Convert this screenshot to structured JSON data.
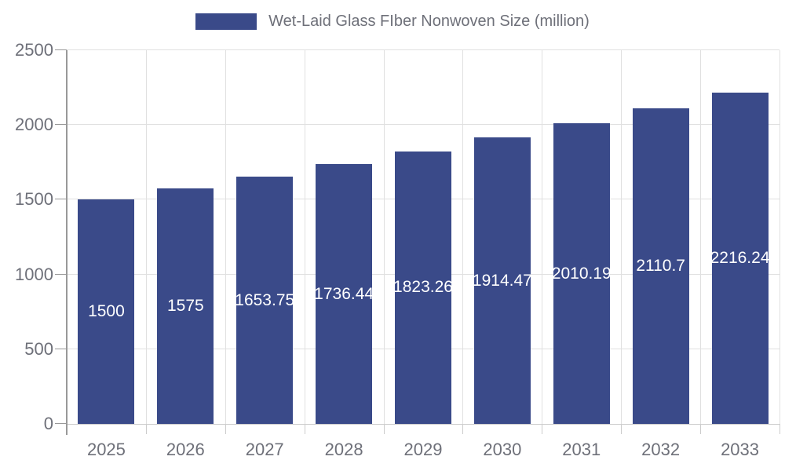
{
  "legend": {
    "label": "Wet-Laid Glass FIber Nonwoven Size (million)"
  },
  "chart_data": {
    "type": "bar",
    "title": "Wet-Laid Glass FIber Nonwoven Size (million)",
    "categories": [
      "2025",
      "2026",
      "2027",
      "2028",
      "2029",
      "2030",
      "2031",
      "2032",
      "2033"
    ],
    "values": [
      1500,
      1575,
      1653.75,
      1736.44,
      1823.26,
      1914.47,
      2010.19,
      2110.7,
      2216.24
    ],
    "value_labels": [
      "1500",
      "1575",
      "1653.75",
      "1736.44",
      "1823.26",
      "1914.47",
      "2010.19",
      "2110.7",
      "2216.24"
    ],
    "y_ticks": [
      0,
      500,
      1000,
      1500,
      2000,
      2500
    ],
    "ylim": [
      0,
      2500
    ],
    "xlabel": "",
    "ylabel": "",
    "grid": true,
    "legend_position": "top",
    "bar_color": "#3A4A89",
    "value_label_color": "#FFFFFF",
    "axis_text_color": "#6E7079",
    "grid_color": "#E0E0E0"
  }
}
